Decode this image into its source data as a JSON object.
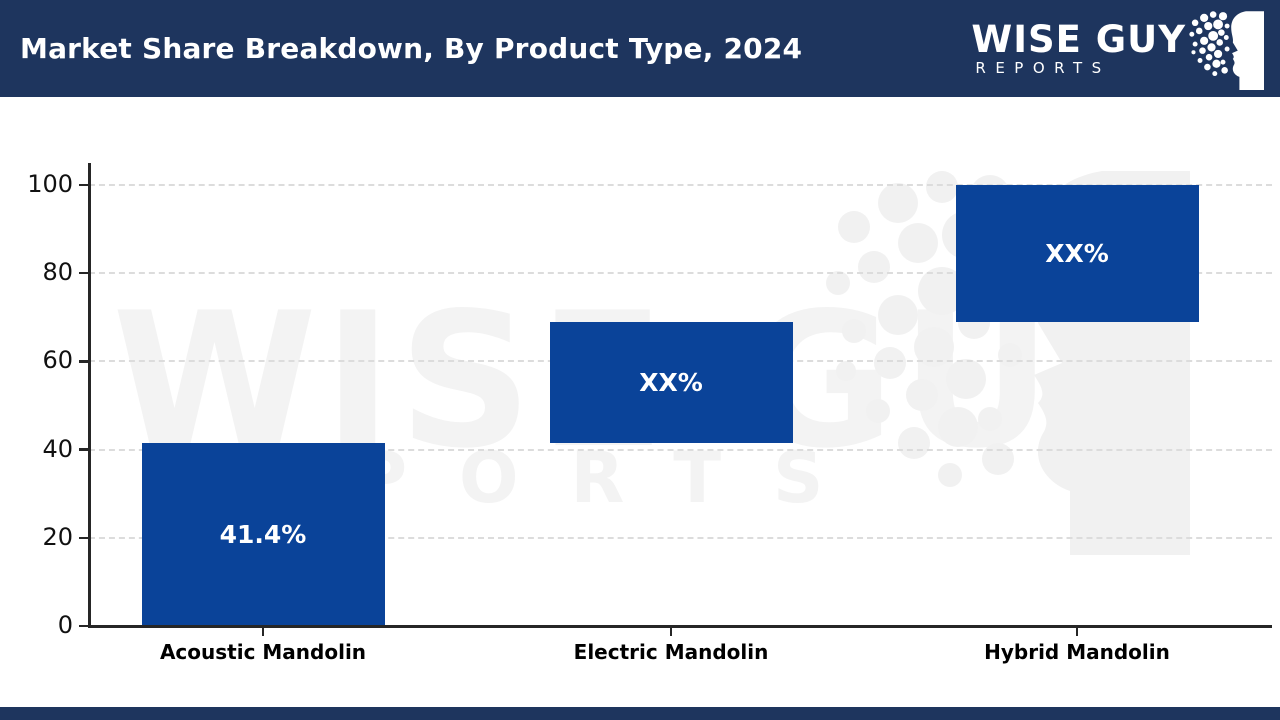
{
  "header": {
    "title": "Market Share Breakdown, By Product Type, 2024",
    "bg_color": "#1e355e",
    "logo": {
      "line1": "WISE GUY",
      "line2": "REPORTS"
    }
  },
  "watermark": {
    "line1": "WISE GUY",
    "line2": "REPORTS"
  },
  "chart_data": {
    "type": "bar",
    "subtype": "floating-waterfall",
    "title": "Market Share Breakdown, By Product Type, 2024",
    "categories": [
      "Acoustic Mandolin",
      "Electric Mandolin",
      "Hybrid Mandolin"
    ],
    "segments": [
      {
        "category": "Acoustic Mandolin",
        "start": 0,
        "end": 41.4,
        "label": "41.4%"
      },
      {
        "category": "Electric Mandolin",
        "start": 41.4,
        "end": 69,
        "label": "XX%"
      },
      {
        "category": "Hybrid Mandolin",
        "start": 69,
        "end": 100,
        "label": "XX%"
      }
    ],
    "yticks": [
      0,
      20,
      40,
      60,
      80,
      100
    ],
    "ylim": [
      0,
      105
    ],
    "xlabel": "",
    "ylabel": "",
    "grid": "horizontal-dashed",
    "legend": "none",
    "bar_color": "#0a4399",
    "bar_label_color": "#ffffff",
    "axis_color": "#262626",
    "grid_color": "#dcdcdc"
  },
  "footer": {
    "bg_color": "#1e355e"
  }
}
